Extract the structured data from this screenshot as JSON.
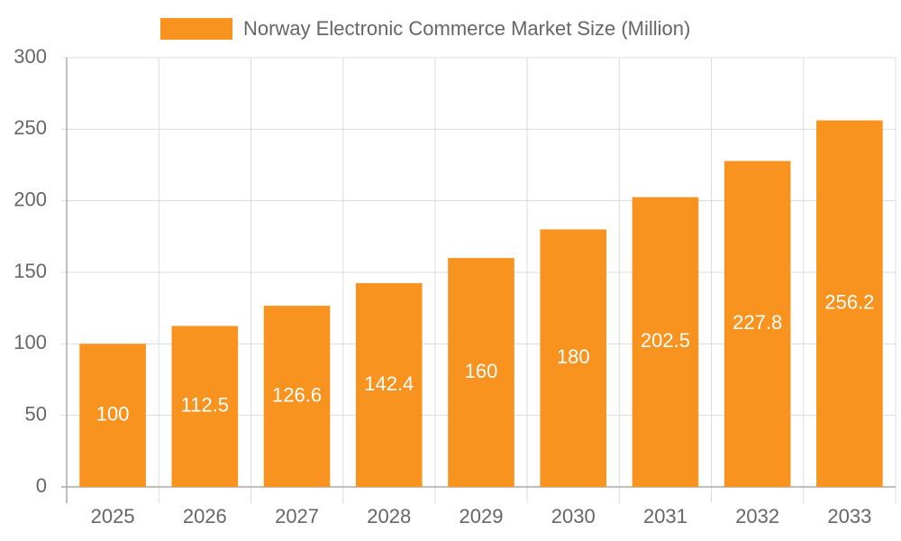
{
  "chart_data": {
    "type": "bar",
    "categories": [
      "2025",
      "2026",
      "2027",
      "2028",
      "2029",
      "2030",
      "2031",
      "2032",
      "2033"
    ],
    "series": [
      {
        "name": "Norway Electronic Commerce Market Size (Million)",
        "color": "#f7931e",
        "values": [
          100,
          112.5,
          126.6,
          142.4,
          160,
          180,
          202.5,
          227.8,
          256.2
        ]
      }
    ],
    "ylim": [
      0,
      300
    ],
    "yticks": [
      0,
      50,
      100,
      150,
      200,
      250,
      300
    ],
    "grid": true,
    "legend": "top"
  }
}
